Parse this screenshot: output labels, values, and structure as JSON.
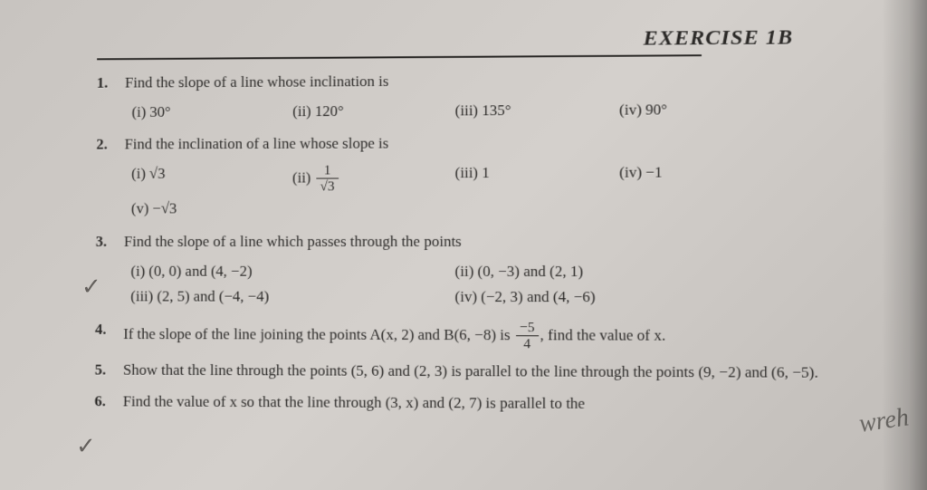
{
  "title": "EXERCISE 1B",
  "questions": [
    {
      "num": "1.",
      "stem": "Find the slope of a line whose inclination is",
      "layout": "row4",
      "options": [
        {
          "label": "(i)",
          "text": "30°"
        },
        {
          "label": "(ii)",
          "text": "120°"
        },
        {
          "label": "(iii)",
          "text": "135°"
        },
        {
          "label": "(iv)",
          "text": "90°"
        }
      ]
    },
    {
      "num": "2.",
      "stem": "Find the inclination of a line whose slope is",
      "layout": "row4plus",
      "options": [
        {
          "label": "(i)",
          "text": "√3"
        },
        {
          "label": "(ii)",
          "text": "",
          "frac": {
            "num": "1",
            "den": "√3"
          }
        },
        {
          "label": "(iii)",
          "text": "1"
        },
        {
          "label": "(iv)",
          "text": "−1"
        },
        {
          "label": "(v)",
          "text": "−√3"
        }
      ]
    },
    {
      "num": "3.",
      "stem": "Find the slope of a line which passes through the points",
      "layout": "row2",
      "options": [
        {
          "label": "(i)",
          "text": "(0, 0) and (4, −2)"
        },
        {
          "label": "(ii)",
          "text": "(0, −3) and (2, 1)"
        },
        {
          "label": "(iii)",
          "text": "(2, 5) and (−4, −4)"
        },
        {
          "label": "(iv)",
          "text": "(−2, 3) and (4, −6)"
        }
      ]
    },
    {
      "num": "4.",
      "stem_parts": {
        "a": "If the slope of the line joining the points A(x, 2) and B(6, −8) is ",
        "frac": {
          "num": "−5",
          "den": "4"
        },
        "b": ", find the value of x."
      }
    },
    {
      "num": "5.",
      "stem": "Show that the line through the points (5, 6) and (2, 3) is parallel to the line through the points (9, −2) and (6, −5)."
    },
    {
      "num": "6.",
      "stem": "Find the value of x so that the line through (3, x) and (2, 7) is parallel to the"
    }
  ],
  "curl_text": "wreh"
}
